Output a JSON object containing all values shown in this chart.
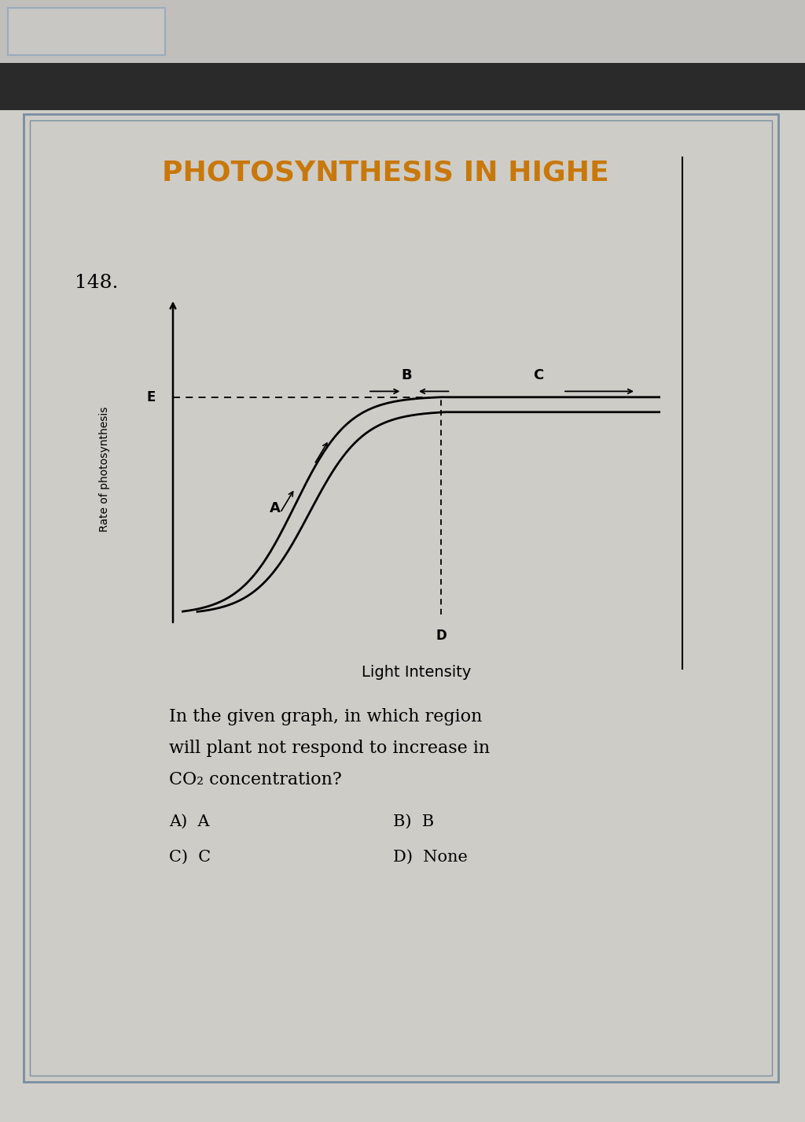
{
  "title": "PHOTOSYNTHESIS IN HIGHE",
  "title_color": "#C8780A",
  "question_number": "148.",
  "ylabel": "Rate of photosynthesis",
  "xlabel": "Light Intensity",
  "question_text": "In the given graph, in which region\nwill plant not respond to increase in\nCO₂ concentration?",
  "bg_top": "#C8C8C8",
  "bg_black_bar": "#222222",
  "bg_content": "#D0CEC8",
  "bg_inner_box": "#CECCC6",
  "border_color": "#8899AA",
  "curve_color": "#000000",
  "label_A": "A",
  "label_B": "B",
  "label_C": "C",
  "label_D": "D",
  "label_E": "E"
}
